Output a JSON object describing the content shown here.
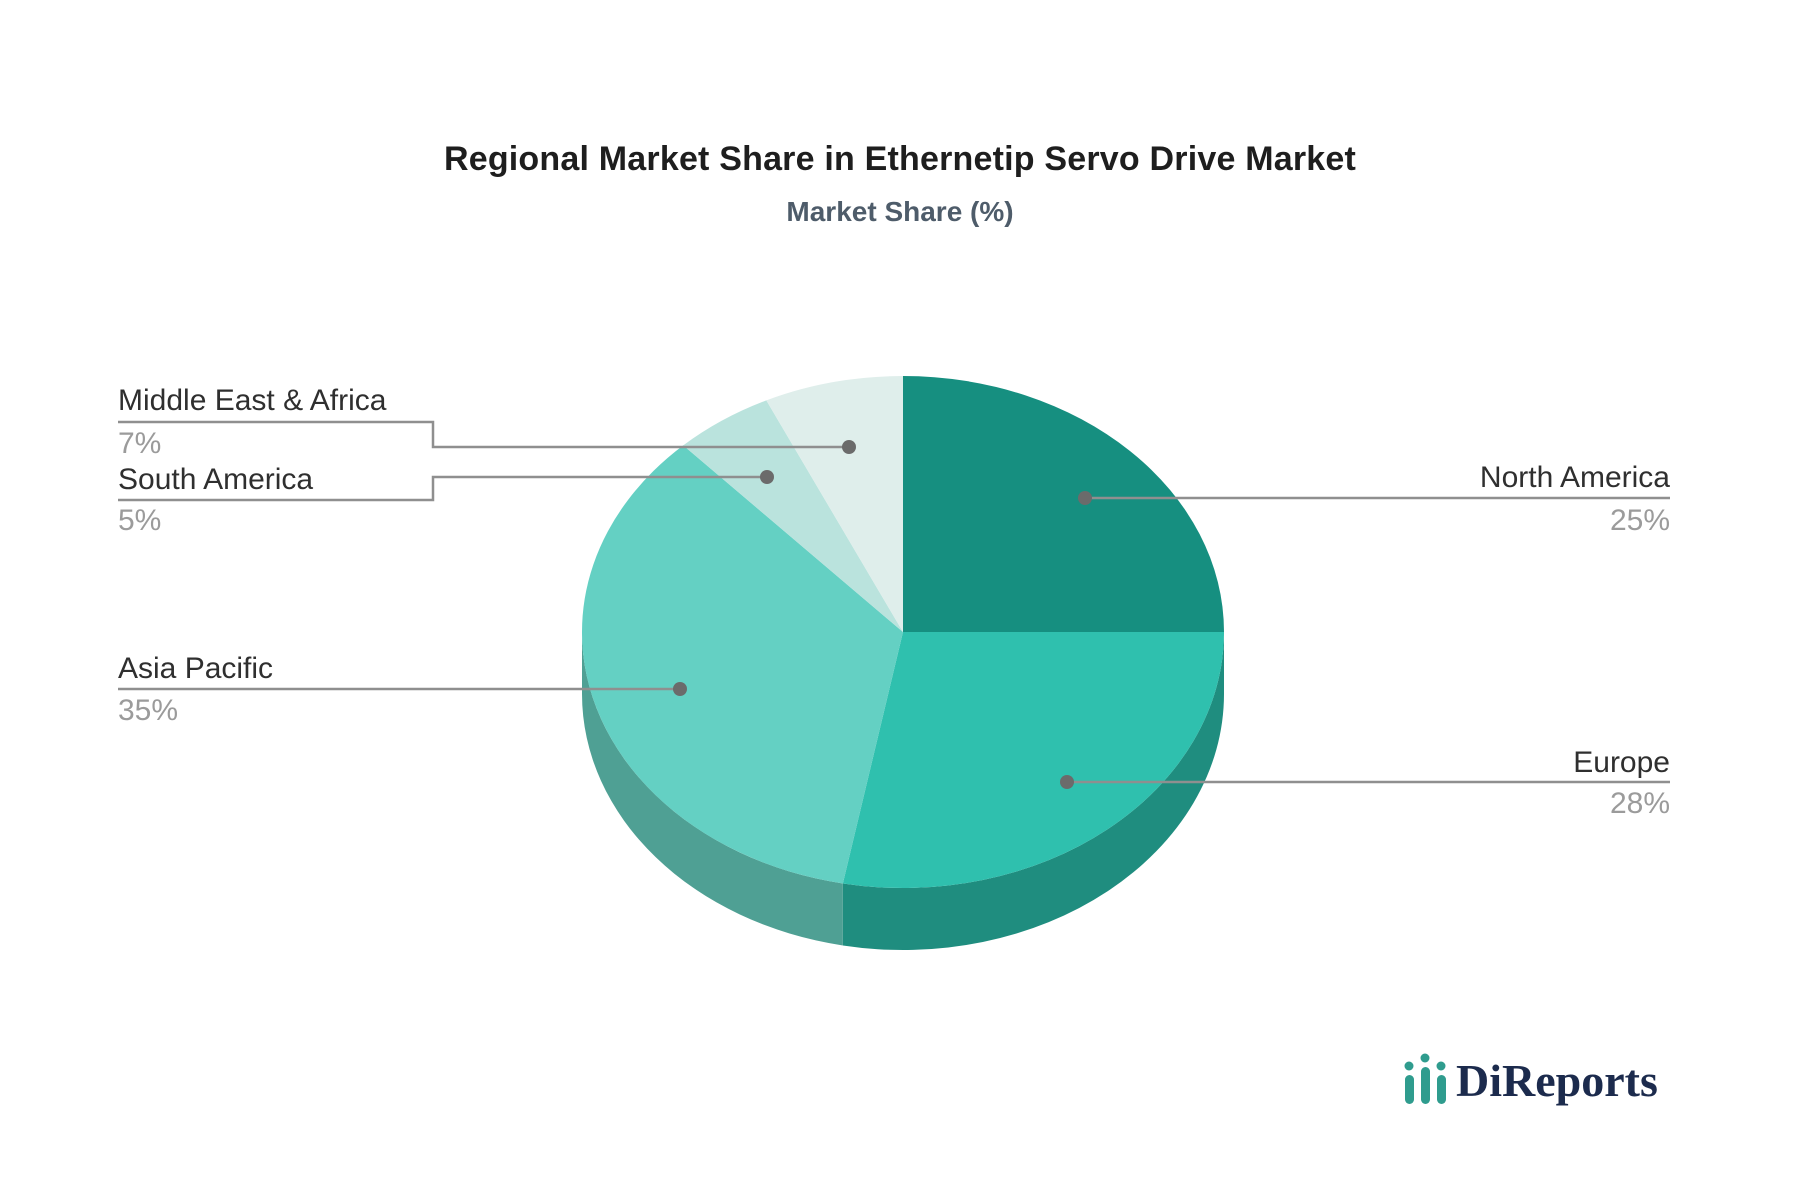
{
  "header": {
    "title": "Regional Market Share in Ethernetip Servo Drive Market",
    "subtitle": "Market Share (%)"
  },
  "chart_data": {
    "type": "pie",
    "title": "Regional Market Share in Ethernetip Servo Drive Market",
    "subtitle": "Market Share (%)",
    "unit": "%",
    "style": "3d-pie",
    "start_angle_deg": 0,
    "direction": "clockwise",
    "legend_position": "callout-labels",
    "slices": [
      {
        "label": "North America",
        "value": 25,
        "display": "25%",
        "color": "#168f80",
        "label_side": "right"
      },
      {
        "label": "Europe",
        "value": 28,
        "display": "28%",
        "color": "#2fc0ae",
        "side_color": "#1f8d7f",
        "label_side": "right"
      },
      {
        "label": "Asia Pacific",
        "value": 35,
        "display": "35%",
        "color": "#64d0c3",
        "side_color": "#4fa094",
        "label_side": "left"
      },
      {
        "label": "South America",
        "value": 5,
        "display": "5%",
        "color": "#bae3dd",
        "label_side": "left"
      },
      {
        "label": "Middle East & Africa",
        "value": 7,
        "display": "7%",
        "color": "#dfeeeb",
        "label_side": "left"
      }
    ],
    "label_color": "#2f2f2f",
    "value_color": "#9b9b9b",
    "leader_line_color": "#8f8f8f",
    "dot_color": "#6b6b6b"
  },
  "logo": {
    "text": "DiReports",
    "icon": "bar-chart-dots-icon",
    "icon_color": "#2f9c8e",
    "text_color": "#1c2b4d"
  }
}
